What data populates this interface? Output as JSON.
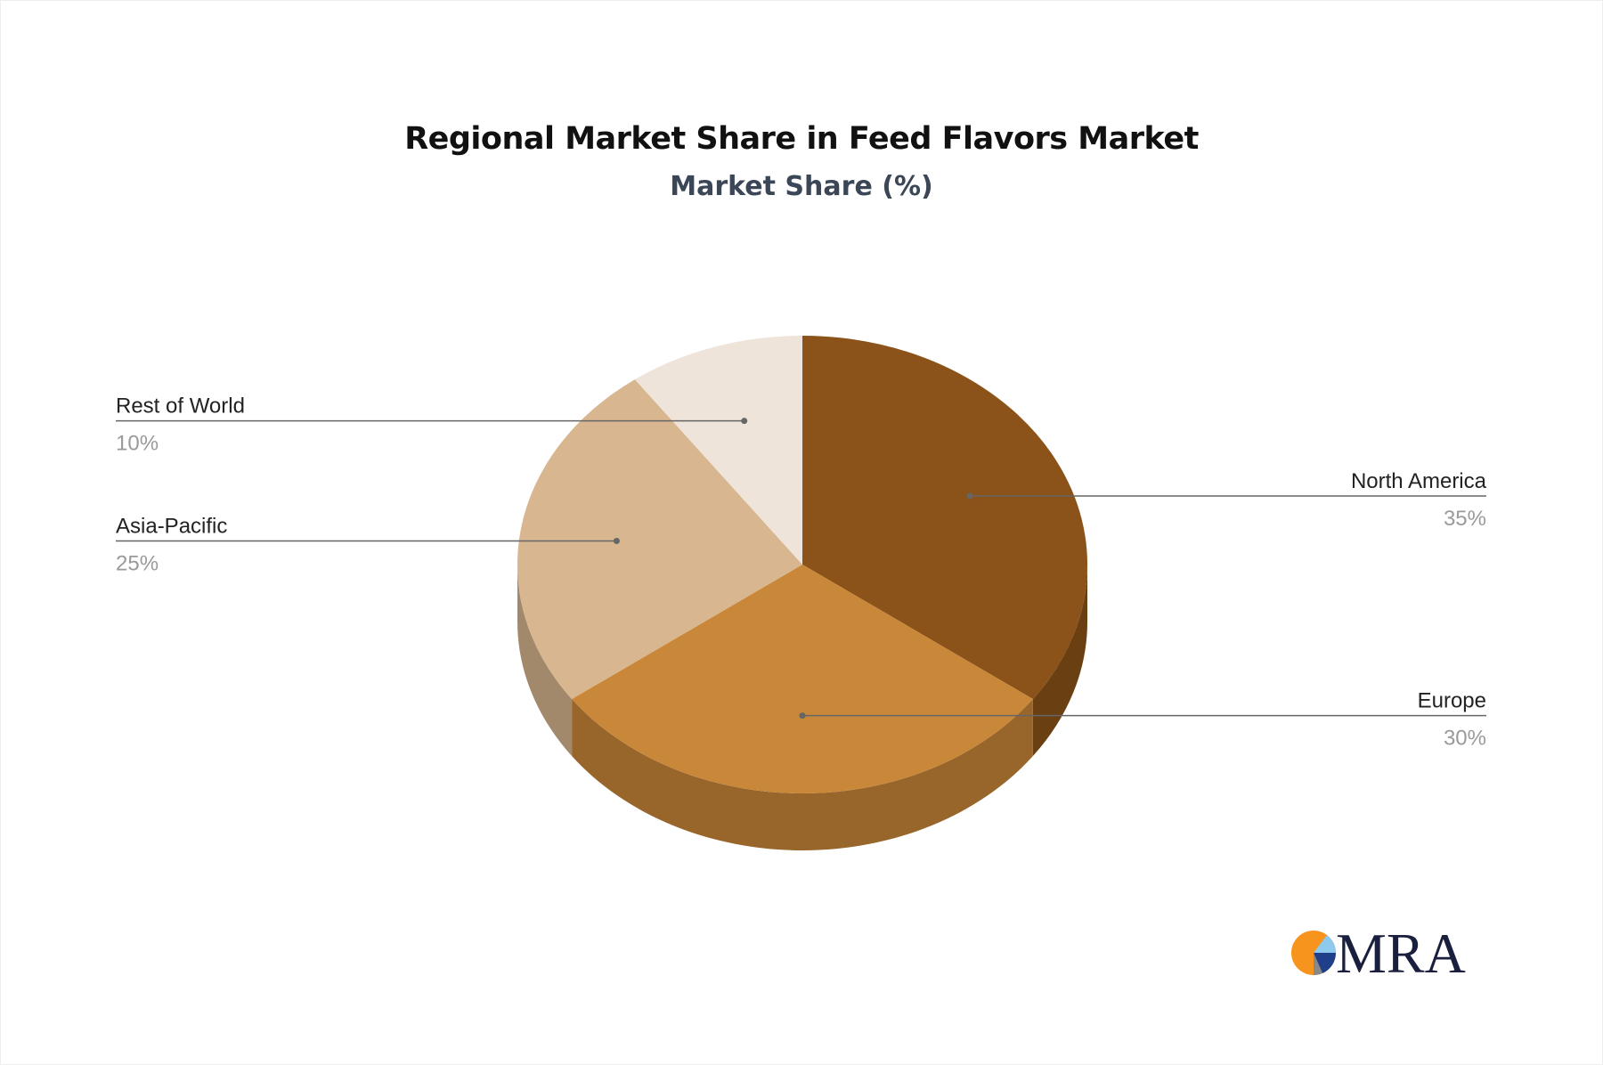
{
  "chart_data": {
    "type": "pie",
    "title": "Regional Market Share in Feed Flavors Market",
    "subtitle": "Market Share (%)",
    "style": "3d",
    "slices": [
      {
        "label": "North America",
        "value": 35,
        "display": "35%",
        "color": "#8B5319",
        "side_color": "#6A3F12"
      },
      {
        "label": "Europe",
        "value": 30,
        "display": "30%",
        "color": "#C98839",
        "side_color": "#98662B"
      },
      {
        "label": "Asia-Pacific",
        "value": 25,
        "display": "25%",
        "color": "#D8B690",
        "side_color": "#A3896B"
      },
      {
        "label": "Rest of World",
        "value": 10,
        "display": "10%",
        "color": "#EFE4DA",
        "side_color": "#C9BFB5"
      }
    ]
  },
  "logo": {
    "text": "MRA"
  }
}
